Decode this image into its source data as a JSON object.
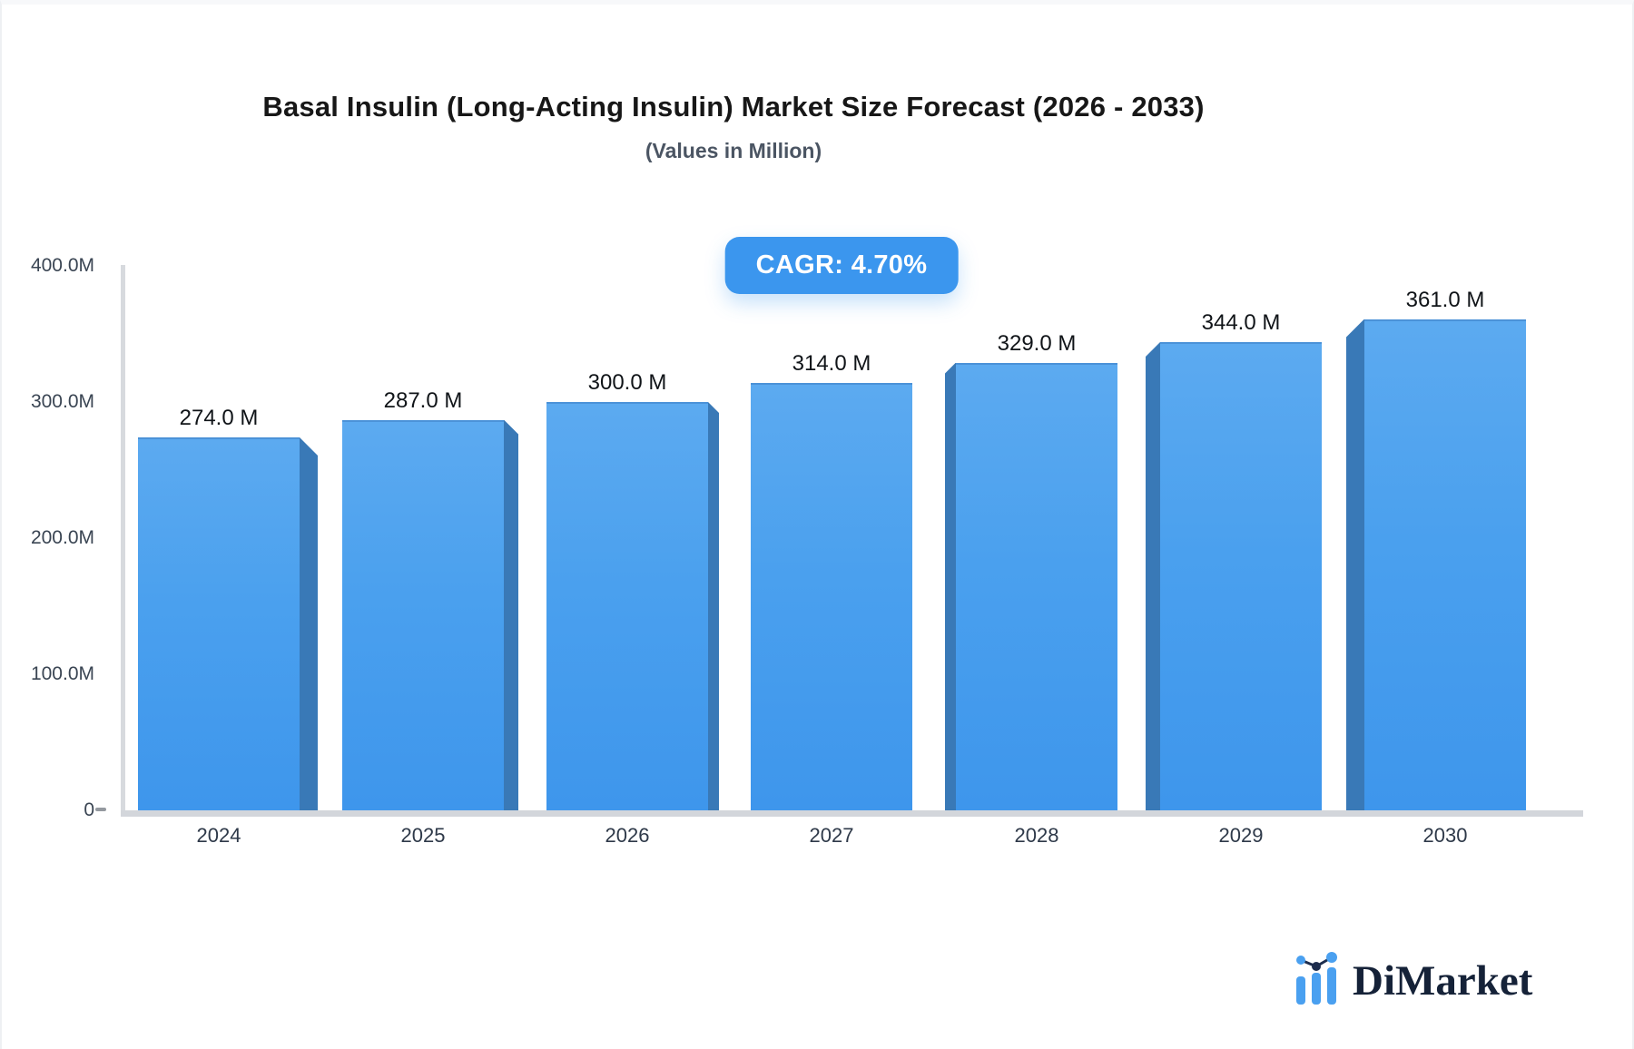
{
  "title": "Basal Insulin (Long-Acting Insulin) Market Size Forecast (2026 - 2033)",
  "subtitle": "(Values in Million)",
  "badge": {
    "label": "CAGR: 4.70%"
  },
  "chart_data": {
    "type": "bar",
    "title": "Basal Insulin (Long-Acting Insulin) Market Size Forecast (2026 - 2033)",
    "subtitle": "(Values in Million)",
    "categories": [
      "2024",
      "2025",
      "2026",
      "2027",
      "2028",
      "2029",
      "2030"
    ],
    "values": [
      274,
      287,
      300,
      314,
      329,
      344,
      361
    ],
    "value_labels": [
      "274.0 M",
      "287.0 M",
      "300.0 M",
      "314.0 M",
      "329.0 M",
      "344.0 M",
      "361.0 M"
    ],
    "xlabel": "",
    "ylabel": "",
    "ylim": [
      0,
      400
    ],
    "ytick_values": [
      0,
      100,
      200,
      300,
      400
    ],
    "ytick_labels": [
      "0",
      "100.0M",
      "200.0M",
      "300.0M",
      "400.0M"
    ],
    "grid": false,
    "legend": false,
    "annotation": "CAGR: 4.70%",
    "bar_style": "3d-beveled",
    "colors": {
      "bar_face_top": "#5caaf0",
      "bar_face_bottom": "#3e96ec",
      "bar_side": "#3979b7",
      "axis_line": "#d5d8dd",
      "badge_background": "#3b96ee",
      "badge_text": "#ffffff",
      "label_text": "#2e3949"
    }
  },
  "logo": {
    "text": "DiMarket",
    "icon": "mini-bar-chart-icon"
  }
}
